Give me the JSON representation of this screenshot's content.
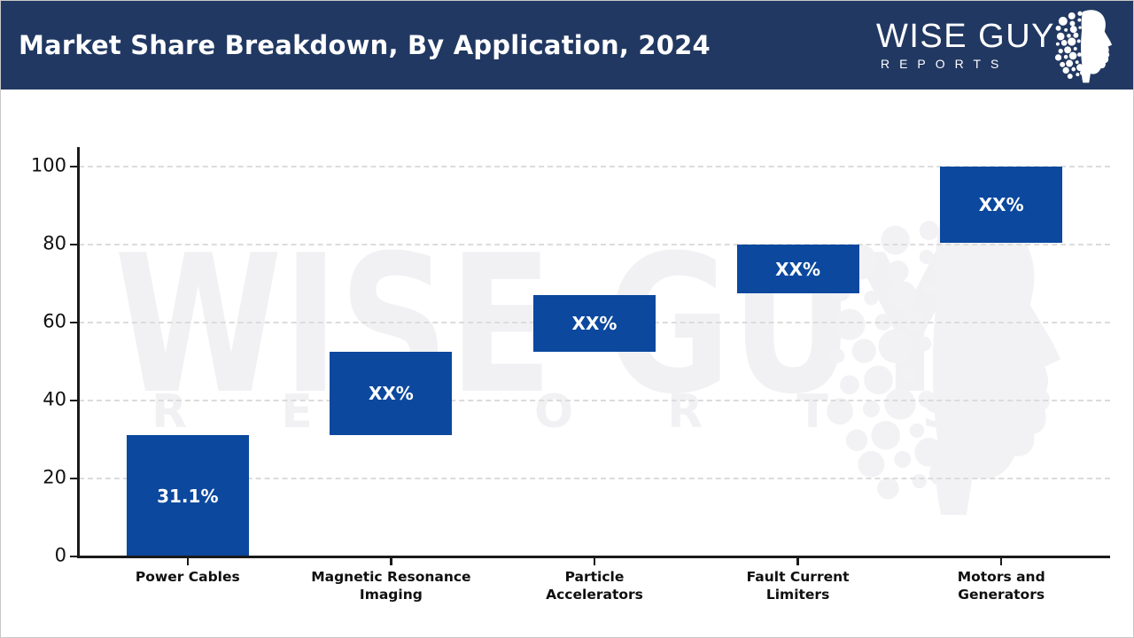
{
  "header": {
    "title": "Market Share Breakdown, By Application, 2024",
    "brand": {
      "name": "WISE GUY",
      "sub": "REPORTS"
    }
  },
  "watermark": {
    "name": "WISE GUY",
    "sub": "R E P O R T S"
  },
  "chart_data": {
    "type": "bar",
    "variant": "waterfall",
    "title": "Market Share Breakdown, By Application, 2024",
    "categories": [
      [
        "Power Cables"
      ],
      [
        "Magnetic Resonance",
        "Imaging"
      ],
      [
        "Particle",
        "Accelerators"
      ],
      [
        "Fault Current",
        "Limiters"
      ],
      [
        "Motors and",
        "Generators"
      ]
    ],
    "series": [
      {
        "name": "Market Share (%)",
        "segments": [
          {
            "category": "Power Cables",
            "start": 0,
            "end": 31.1,
            "label": "31.1%"
          },
          {
            "category": "Magnetic Resonance Imaging",
            "start": 31.1,
            "end": 52.6,
            "label": "XX%"
          },
          {
            "category": "Particle Accelerators",
            "start": 52.6,
            "end": 67.1,
            "label": "XX%"
          },
          {
            "category": "Fault Current Limiters",
            "start": 67.6,
            "end": 79.9,
            "label": "XX%"
          },
          {
            "category": "Motors and Generators",
            "start": 80.5,
            "end": 100,
            "label": "XX%"
          }
        ]
      }
    ],
    "xlabel": "",
    "ylabel": "",
    "yticks": [
      0,
      20,
      40,
      60,
      80,
      100
    ],
    "ylim": [
      0,
      105
    ],
    "grid": {
      "horizontal": true,
      "style": "dashed",
      "color": "#dcdcdc"
    },
    "legend": "none",
    "bar_color": "#0b489e",
    "bar_label_color": "#ffffff",
    "axis_color": "#1a1a1a",
    "tick_label_color": "#111111"
  },
  "colors": {
    "header_bg": "#213862",
    "page_bg": "#ffffff",
    "border": "#c8c8c8",
    "watermark": "#f1f1f4"
  }
}
